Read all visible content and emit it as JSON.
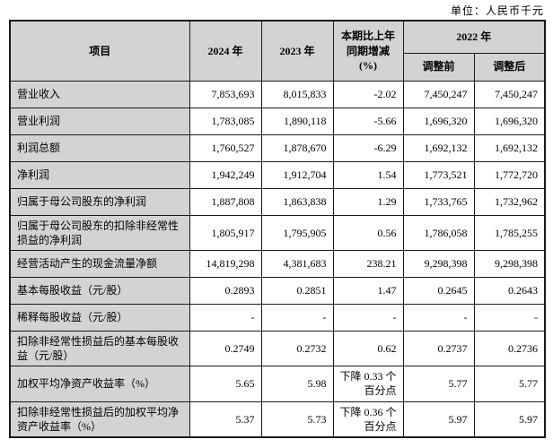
{
  "unit_label": "单位：人民币千元",
  "table": {
    "header": {
      "item": "项目",
      "col_2024": "2024 年",
      "col_2023": "2023 年",
      "change": [
        "本期比上年",
        "同期增减",
        "(%)"
      ],
      "col_2022": "2022 年",
      "adj_before": "调整前",
      "adj_after": "调整后"
    },
    "rows": [
      {
        "item": "营业收入",
        "y2024": "7,853,693",
        "y2023": "8,015,833",
        "change": "-2.02",
        "before": "7,450,247",
        "after": "7,450,247"
      },
      {
        "item": "营业利润",
        "y2024": "1,783,085",
        "y2023": "1,890,118",
        "change": "-5.66",
        "before": "1,696,320",
        "after": "1,696,320"
      },
      {
        "item": "利润总额",
        "y2024": "1,760,527",
        "y2023": "1,878,670",
        "change": "-6.29",
        "before": "1,692,132",
        "after": "1,692,132"
      },
      {
        "item": "净利润",
        "y2024": "1,942,249",
        "y2023": "1,912,704",
        "change": "1.54",
        "before": "1,773,521",
        "after": "1,772,720"
      },
      {
        "item": "归属于母公司股东的净利润",
        "y2024": "1,887,808",
        "y2023": "1,863,838",
        "change": "1.29",
        "before": "1,733,765",
        "after": "1,732,962"
      },
      {
        "item": "归属于母公司股东的扣除非经常性损益的净利润",
        "y2024": "1,805,917",
        "y2023": "1,795,905",
        "change": "0.56",
        "before": "1,786,058",
        "after": "1,785,255"
      },
      {
        "item": "经营活动产生的现金流量净额",
        "y2024": "14,819,298",
        "y2023": "4,381,683",
        "change": "238.21",
        "before": "9,298,398",
        "after": "9,298,398"
      },
      {
        "item": "基本每股收益（元/股）",
        "y2024": "0.2893",
        "y2023": "0.2851",
        "change": "1.47",
        "before": "0.2645",
        "after": "0.2643"
      },
      {
        "item": "稀释每股收益（元/股）",
        "y2024": "-",
        "y2023": "-",
        "change": "-",
        "before": "-",
        "after": "-"
      },
      {
        "item": "扣除非经常性损益后的基本每股收益（元/股）",
        "y2024": "0.2749",
        "y2023": "0.2732",
        "change": "0.62",
        "before": "0.2737",
        "after": "0.2736"
      },
      {
        "item": "加权平均净资产收益率（%）",
        "y2024": "5.65",
        "y2023": "5.98",
        "change": [
          "下降 0.33 个",
          "百分点"
        ],
        "before": "5.77",
        "after": "5.77"
      },
      {
        "item": "扣除非经常性损益后的加权平均净资产收益率（%）",
        "y2024": "5.37",
        "y2023": "5.73",
        "change": [
          "下降 0.36 个",
          "百分点"
        ],
        "before": "5.97",
        "after": "5.97"
      }
    ]
  }
}
